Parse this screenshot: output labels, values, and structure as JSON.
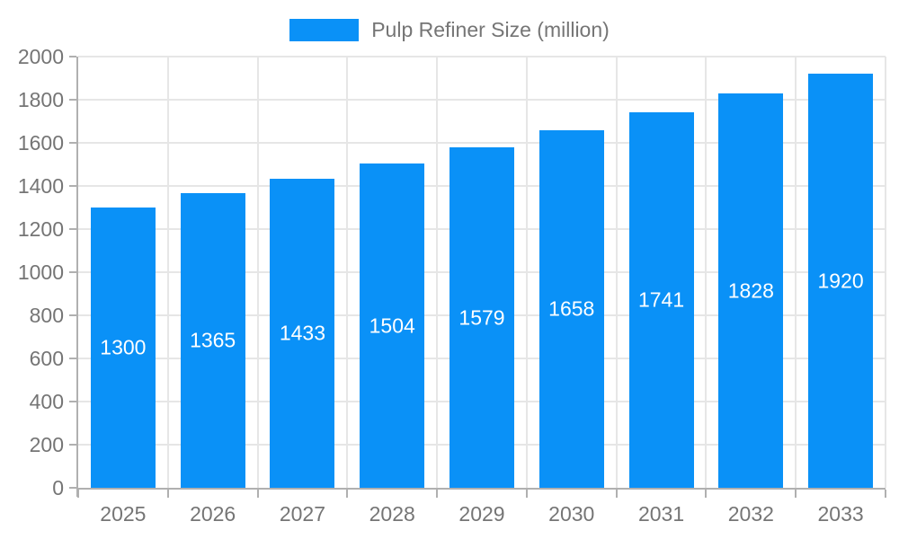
{
  "colors": {
    "bar": "#0a91f7",
    "grid": "#e6e6e6",
    "axis_line": "#b0b0b0",
    "axis_text": "#757575",
    "value_label": "#ffffff",
    "background": "#ffffff"
  },
  "chart_data": {
    "type": "bar",
    "title": "Pulp Refiner Size (million)",
    "series_name": "Pulp Refiner Size (million)",
    "categories": [
      "2025",
      "2026",
      "2027",
      "2028",
      "2029",
      "2030",
      "2031",
      "2032",
      "2033"
    ],
    "values": [
      1300,
      1365,
      1433,
      1504,
      1579,
      1658,
      1741,
      1828,
      1920
    ],
    "value_labels": [
      "1300",
      "1365",
      "1433",
      "1504",
      "1579",
      "1658",
      "1741",
      "1828",
      "1920"
    ],
    "xlabel": "",
    "ylabel": "",
    "ylim": [
      0,
      2000
    ],
    "y_ticks": [
      0,
      200,
      400,
      600,
      800,
      1000,
      1200,
      1400,
      1600,
      1800,
      2000
    ],
    "grid": true,
    "legend_position": "top",
    "value_label_position": "middle-of-bar"
  }
}
